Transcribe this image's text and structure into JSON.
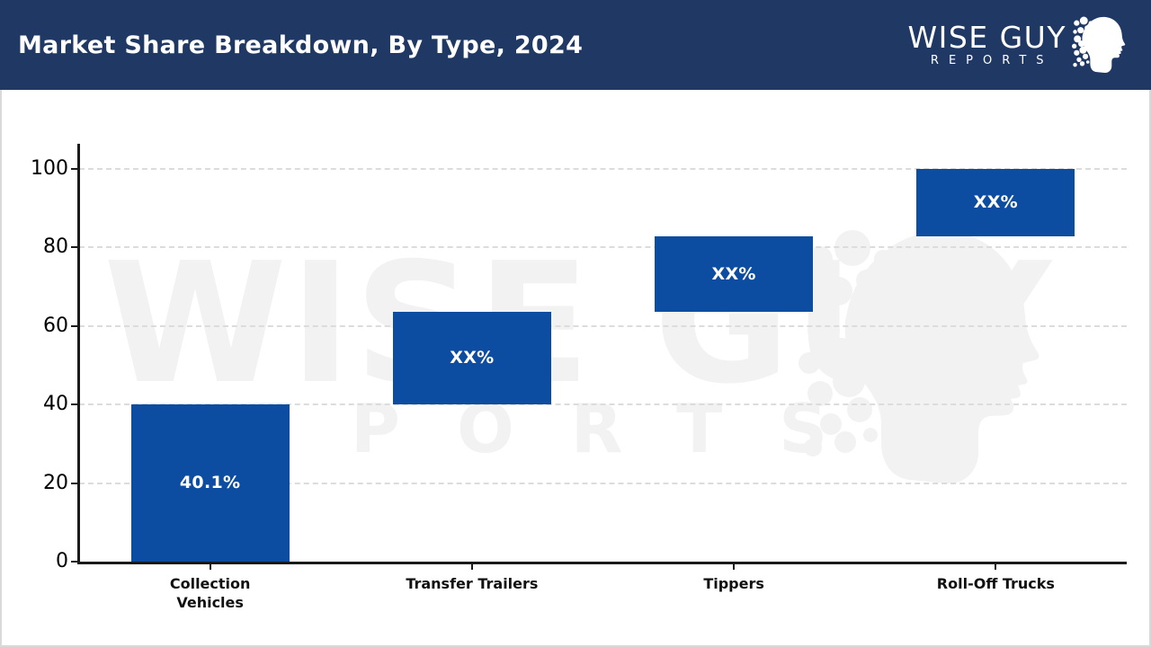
{
  "header": {
    "title": "Market Share Breakdown, By Type, 2024",
    "logo": {
      "line1": "WISE GUY",
      "line2": "REPORTS",
      "head_icon": "dotted-head-profile"
    }
  },
  "watermark": {
    "line1": "WISE GUY",
    "line2": "REPORTS",
    "head_icon": "dotted-head-profile"
  },
  "chart_data": {
    "type": "bar",
    "subtype": "stacked-waterfall",
    "title": "Market Share Breakdown, By Type, 2024",
    "xlabel": "",
    "ylabel": "",
    "ylim": [
      0,
      100
    ],
    "yticks": [
      0,
      20,
      40,
      60,
      80,
      100
    ],
    "grid": "horizontal-dashed",
    "legend": "none",
    "categories": [
      "Collection Vehicles",
      "Transfer Trailers",
      "Tippers",
      "Roll-Off Trucks"
    ],
    "category_lines": [
      [
        "Collection",
        "Vehicles"
      ],
      [
        "Transfer Trailers"
      ],
      [
        "Tippers"
      ],
      [
        "Roll-Off Trucks"
      ]
    ],
    "bars": [
      {
        "category": "Collection Vehicles",
        "start": 0,
        "end": 40.1,
        "value": 40.1,
        "label": "40.1%"
      },
      {
        "category": "Transfer Trailers",
        "start": 40.1,
        "end": 63.5,
        "value": 23.4,
        "label": "XX%"
      },
      {
        "category": "Tippers",
        "start": 63.5,
        "end": 82.7,
        "value": 19.2,
        "label": "XX%"
      },
      {
        "category": "Roll-Off Trucks",
        "start": 82.7,
        "end": 100,
        "value": 17.3,
        "label": "XX%"
      }
    ]
  },
  "colors": {
    "header_bg": "#1f3864",
    "bar": "#0c4da2",
    "grid": "#dcdcdc",
    "axis": "#1a1a1a",
    "watermark": "#f2f2f2",
    "frame_border": "#d9d9d9"
  }
}
